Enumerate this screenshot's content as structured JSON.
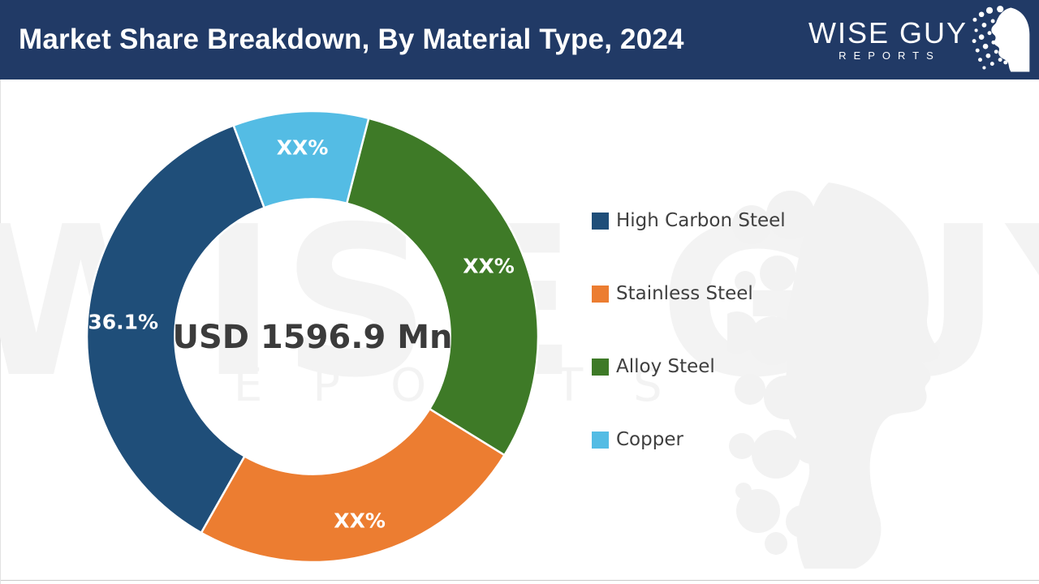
{
  "header": {
    "title": "Market Share Breakdown, By Material Type, 2024",
    "logo": {
      "line1": "WISE GUY",
      "line2": "REPORTS"
    }
  },
  "watermark": {
    "line1": "WISE GUY",
    "line2": "REPORTS"
  },
  "colors": {
    "header_bg": "#213a66",
    "center_text": "#3b3b3b",
    "legend_text": "#3f3f3f",
    "slice_gap": "#ffffff"
  },
  "chart_data": {
    "type": "pie",
    "subtype": "donut",
    "center_label": "USD 1596.9 Mn",
    "legend_position": "right",
    "start_angle_deg": -20.5,
    "direction": "ccw",
    "inner_radius_ratio": 0.61,
    "series": [
      {
        "name": "High Carbon Steel",
        "value_pct": 36.1,
        "display_label": "36.1%",
        "color": "#1f4e79"
      },
      {
        "name": "Stainless Steel",
        "value_pct": 24.4,
        "display_label": "XX%",
        "color": "#ec7d31"
      },
      {
        "name": "Alloy Steel",
        "value_pct": 29.8,
        "display_label": "XX%",
        "color": "#3e7a27"
      },
      {
        "name": "Copper",
        "value_pct": 9.7,
        "display_label": "XX%",
        "color": "#54bce4"
      }
    ]
  }
}
